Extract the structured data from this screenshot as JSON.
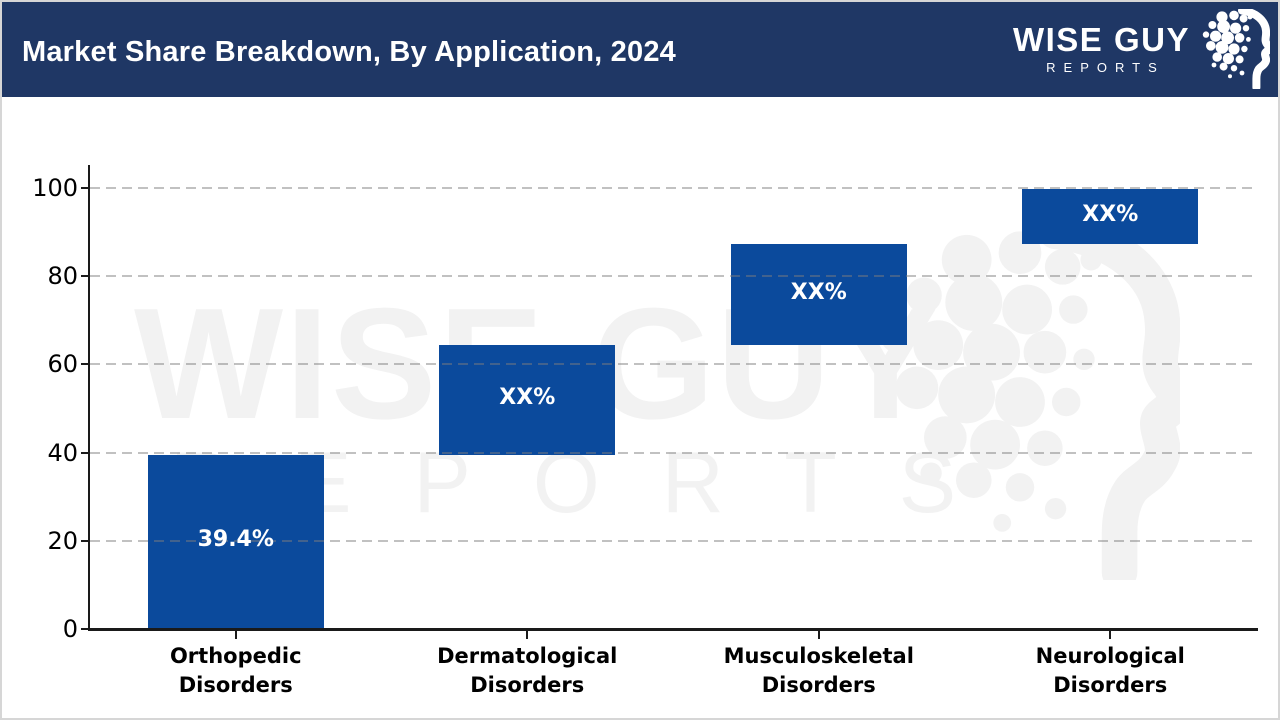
{
  "header": {
    "title": "Market Share Breakdown, By Application, 2024",
    "logo": {
      "primary": "WISE GUY",
      "secondary": "REPORTS"
    }
  },
  "watermark": {
    "primary": "WISE GUY",
    "secondary": "REPORTS"
  },
  "colors": {
    "header_bg": "#1f3765",
    "bar": "#0b4a9c",
    "bar_label": "#ffffff",
    "axis": "#1a1a1a",
    "grid": "#7d7d7d",
    "watermark": "#f2f2f2",
    "canvas_border": "#d6d6d6"
  },
  "chart_data": {
    "type": "bar",
    "subtype": "waterfall",
    "title": "Market Share Breakdown, By Application, 2024",
    "xlabel": "",
    "ylabel": "",
    "ylim": [
      0,
      100
    ],
    "yticks": [
      0,
      20,
      40,
      60,
      80,
      100
    ],
    "grid": "dashed-horizontal-over-bars",
    "legend": "none",
    "categories": [
      [
        "Orthopedic",
        "Disorders"
      ],
      [
        "Dermatological",
        "Disorders"
      ],
      [
        "Musculoskeletal",
        "Disorders"
      ],
      [
        "Neurological",
        "Disorders"
      ]
    ],
    "bars": [
      {
        "category": "Orthopedic Disorders",
        "label": "39.4%",
        "start": 0,
        "end": 39.4
      },
      {
        "category": "Dermatological Disorders",
        "label": "XX%",
        "start": 39.4,
        "end": 64.3
      },
      {
        "category": "Musculoskeletal Disorders",
        "label": "XX%",
        "start": 64.3,
        "end": 87.2
      },
      {
        "category": "Neurological Disorders",
        "label": "XX%",
        "start": 87.2,
        "end": 99.8
      }
    ]
  }
}
